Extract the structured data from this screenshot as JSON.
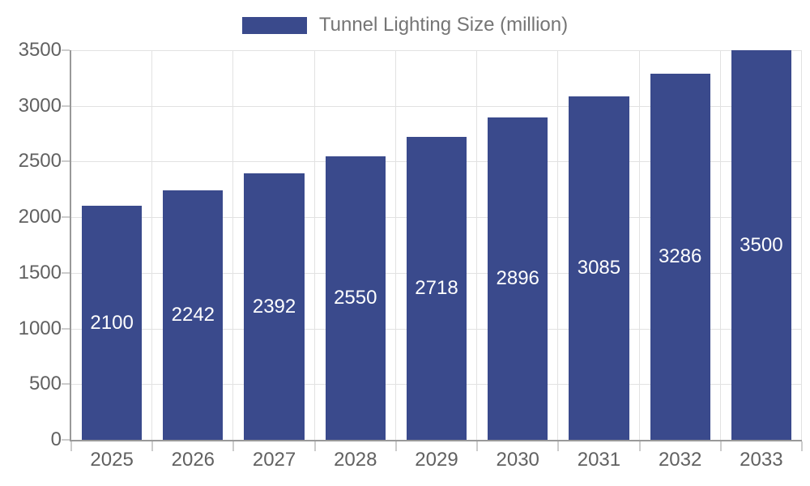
{
  "legend": {
    "items": [
      {
        "label": "Tunnel Lighting Size (million)",
        "swatch_color": "#3A4A8C"
      }
    ]
  },
  "chart_data": {
    "type": "bar",
    "title": "Tunnel Lighting Size (million)",
    "categories": [
      "2025",
      "2026",
      "2027",
      "2028",
      "2029",
      "2030",
      "2031",
      "2032",
      "2033"
    ],
    "series": [
      {
        "name": "Tunnel Lighting Size (million)",
        "values": [
          2100,
          2242,
          2392,
          2550,
          2718,
          2896,
          3085,
          3286,
          3500
        ]
      }
    ],
    "bar_value_labels": [
      "2100",
      "2242",
      "2392",
      "2550",
      "2718",
      "2896",
      "3085",
      "3286",
      "3500"
    ],
    "xlabel": "",
    "ylabel": "",
    "ylim": [
      0,
      3500
    ],
    "yticks": [
      0,
      500,
      1000,
      1500,
      2000,
      2500,
      3000,
      3500
    ],
    "grid": true,
    "legend_position": "top-center",
    "bar_label_position": "inside-center",
    "colors": {
      "bar": "#3A4A8C",
      "bar_label": "#FFFFFF",
      "grid": "#E2E2E2",
      "axis": "#999999",
      "tick": "#CCCCCC",
      "tick_label": "#616161",
      "legend_text": "#757575",
      "background": "#FFFFFF"
    }
  }
}
